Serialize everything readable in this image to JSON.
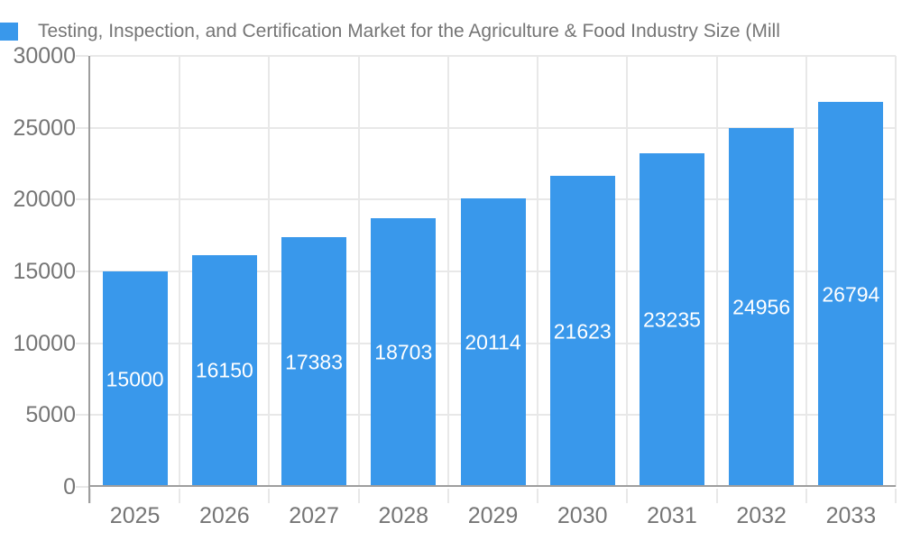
{
  "legend": {
    "swatch_icon": "legend-swatch-square"
  },
  "chart_data": {
    "type": "bar",
    "title": "Testing, Inspection, and Certification Market for the Agriculture & Food Industry Size (Mill",
    "categories": [
      "2025",
      "2026",
      "2027",
      "2028",
      "2029",
      "2030",
      "2031",
      "2032",
      "2033"
    ],
    "values": [
      15000,
      16150,
      17383,
      18703,
      20114,
      21623,
      23235,
      24956,
      26794
    ],
    "value_labels": [
      "15000",
      "16150",
      "17383",
      "18703",
      "20114",
      "21623",
      "23235",
      "24956",
      "26794"
    ],
    "xlabel": "",
    "ylabel": "",
    "ylim": [
      0,
      30000
    ],
    "yticks": [
      0,
      5000,
      10000,
      15000,
      20000,
      25000,
      30000
    ],
    "ytick_labels": [
      "0",
      "5000",
      "10000",
      "15000",
      "20000",
      "25000",
      "30000"
    ],
    "grid": true,
    "legend_position": "top-left",
    "colors": {
      "bar": "#3998EB",
      "axis_text": "#757575",
      "grid": "#E8E8E8",
      "axis_line": "#9E9E9E",
      "value_label": "#FFFFFF",
      "background": "#FFFFFF"
    }
  }
}
